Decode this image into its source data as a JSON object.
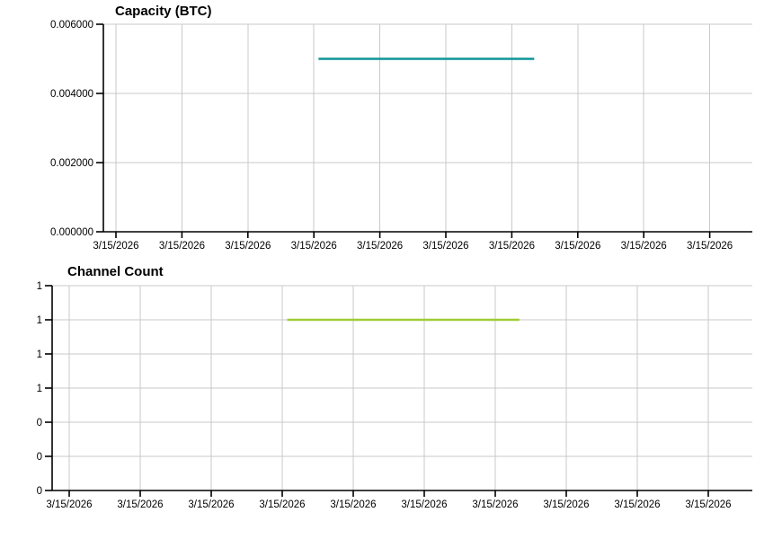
{
  "page": {
    "background": "#ffffff"
  },
  "chart_data": [
    {
      "type": "line",
      "title": "Capacity (BTC)",
      "xlabel": "",
      "ylabel": "",
      "ylim": [
        0,
        0.006
      ],
      "grid": true,
      "legend_position": "none",
      "axis_color": "#000000",
      "grid_color": "#c9c9c9",
      "y_ticks": [
        {
          "value": 0.006,
          "label": "0.006000"
        },
        {
          "value": 0.004,
          "label": "0.004000"
        },
        {
          "value": 0.002,
          "label": "0.002000"
        },
        {
          "value": 0.0,
          "label": "0.000000"
        }
      ],
      "x_tick_labels": [
        "3/15/2026",
        "3/15/2026",
        "3/15/2026",
        "3/15/2026",
        "3/15/2026",
        "3/15/2026",
        "3/15/2026",
        "3/15/2026",
        "3/15/2026",
        "3/15/2026"
      ],
      "series": [
        {
          "name": "Capacity (BTC)",
          "color": "#0f9498",
          "style": "solid",
          "markers": false,
          "y_value": 0.005,
          "x_span_ticks": [
            3.07,
            6.34
          ]
        }
      ]
    },
    {
      "type": "line",
      "title": "Channel Count",
      "xlabel": "",
      "ylabel": "",
      "ylim": [
        0,
        1.2
      ],
      "grid": true,
      "legend_position": "none",
      "axis_color": "#000000",
      "grid_color": "#c9c9c9",
      "y_ticks": [
        {
          "value": 1.2,
          "label": "1"
        },
        {
          "value": 1.0,
          "label": "1"
        },
        {
          "value": 0.8,
          "label": "1"
        },
        {
          "value": 0.6,
          "label": "1"
        },
        {
          "value": 0.4,
          "label": "0"
        },
        {
          "value": 0.2,
          "label": "0"
        },
        {
          "value": 0.0,
          "label": "0"
        }
      ],
      "x_tick_labels": [
        "3/15/2026",
        "3/15/2026",
        "3/15/2026",
        "3/15/2026",
        "3/15/2026",
        "3/15/2026",
        "3/15/2026",
        "3/15/2026",
        "3/15/2026",
        "3/15/2026"
      ],
      "series": [
        {
          "name": "Channel Count",
          "color": "#a0cc37",
          "style": "solid",
          "markers": false,
          "y_value": 1,
          "x_span_ticks": [
            3.07,
            6.34
          ]
        }
      ]
    }
  ]
}
